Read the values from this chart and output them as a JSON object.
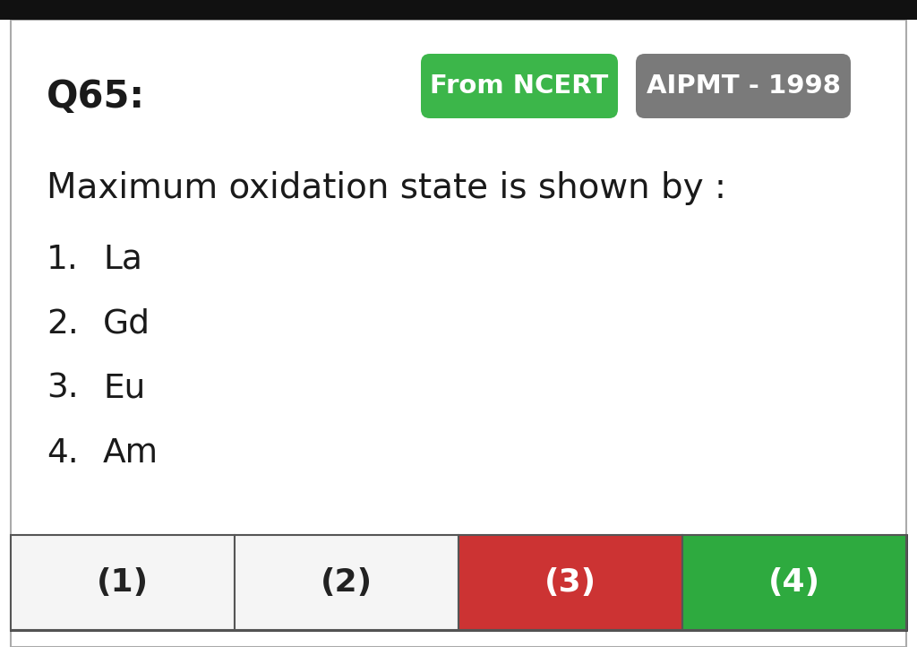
{
  "question_number": "Q65:",
  "badge_ncert_text": "From NCERT",
  "badge_ncert_color": "#3cb64a",
  "badge_aipmt_text": "AIPMT - 1998",
  "badge_aipmt_color": "#7a7a7a",
  "question_text": "Maximum oxidation state is shown by :",
  "options": [
    "La",
    "Gd",
    "Eu",
    "Am"
  ],
  "option_numbers": [
    "1.",
    "2.",
    "3.",
    "4."
  ],
  "bottom_labels": [
    "(1)",
    "(2)",
    "(3)",
    "(4)"
  ],
  "bottom_colors": [
    "#f5f5f5",
    "#f5f5f5",
    "#cc3333",
    "#2eaa3f"
  ],
  "bottom_text_colors": [
    "#222222",
    "#222222",
    "#ffffff",
    "#ffffff"
  ],
  "background_color": "#ffffff",
  "card_color": "#ffffff",
  "border_color": "#aaaaaa",
  "text_color": "#1a1a1a",
  "top_bar_color": "#111111",
  "top_bar_height": 22
}
